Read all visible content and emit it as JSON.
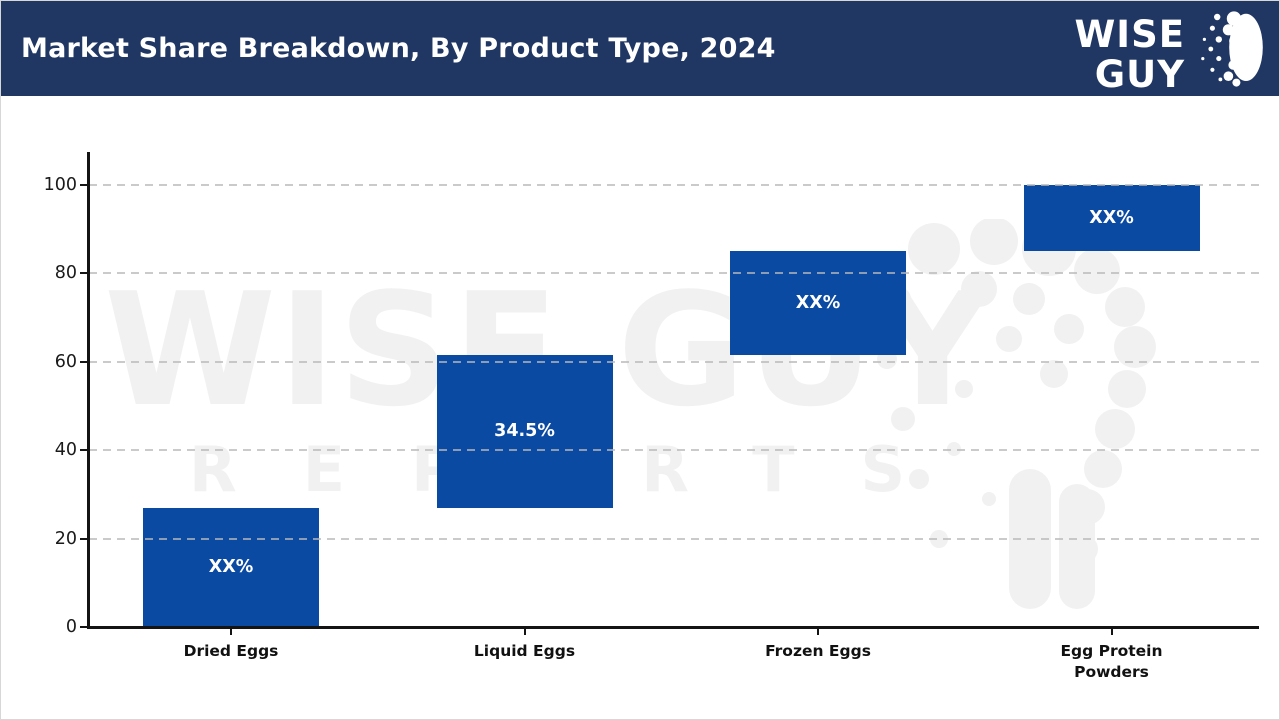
{
  "header": {
    "title": "Market Share Breakdown, By Product Type, 2024",
    "logo": {
      "line1": "WISE GUY",
      "line2": "REPORTS"
    }
  },
  "watermark": {
    "line1": "WISE GUY",
    "line2": "REPORTS"
  },
  "chart_data": {
    "type": "bar",
    "subtype": "floating-segment-waterfall",
    "title": "Market Share Breakdown, By Product Type, 2024",
    "categories": [
      "Dried Eggs",
      "Liquid Eggs",
      "Frozen Eggs",
      "Egg Protein Powders"
    ],
    "bars": [
      {
        "category": "Dried Eggs",
        "label": "XX%",
        "start": 0,
        "end": 27
      },
      {
        "category": "Liquid Eggs",
        "label": "34.5%",
        "start": 27,
        "end": 61.5
      },
      {
        "category": "Frozen Eggs",
        "label": "XX%",
        "start": 61.5,
        "end": 85
      },
      {
        "category": "Egg Protein Powders",
        "label": "XX%",
        "start": 85,
        "end": 100
      }
    ],
    "y_ticks": [
      0,
      20,
      40,
      60,
      80,
      100
    ],
    "ylim": [
      0,
      107
    ],
    "xlabel": "",
    "ylabel": "",
    "grid": "horizontal-dashed",
    "legend": "none",
    "bar_color": "#0b4aa2",
    "bar_label_color": "#ffffff"
  },
  "colors": {
    "header_bg": "#203763",
    "bar": "#0b4aa2",
    "axis": "#141414",
    "grid": "#d9d9d9",
    "watermark": "#f1f1f1",
    "page_border": "#d7d7d7"
  }
}
